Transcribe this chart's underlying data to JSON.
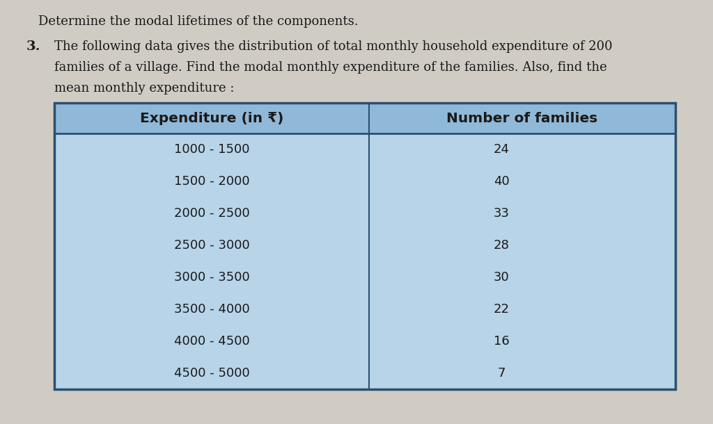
{
  "title_line1": "Determine the modal lifetimes of the components.",
  "problem_number": "3.",
  "problem_text_line1": "The following data gives the distribution of total monthly household expenditure of 200",
  "problem_text_line2": "families of a village. Find the modal monthly expenditure of the families. Also, find the",
  "problem_text_line3": "mean monthly expenditure :",
  "col1_header": "Expenditure (in ₹)",
  "col2_header": "Number of families",
  "rows": [
    [
      "1000 - 1500",
      "24"
    ],
    [
      "1500 - 2000",
      "40"
    ],
    [
      "2000 - 2500",
      "33"
    ],
    [
      "2500 - 3000",
      "28"
    ],
    [
      "3000 - 3500",
      "30"
    ],
    [
      "3500 - 4000",
      "22"
    ],
    [
      "4000 - 4500",
      "16"
    ],
    [
      "4500 - 5000",
      "7"
    ]
  ],
  "table_bg": "#b8d4e8",
  "page_bg": "#d0ccc4",
  "header_bg": "#90b8d8",
  "text_color": "#1a1a1a",
  "border_color": "#2a5070",
  "header_text_color": "#1a1a1a"
}
